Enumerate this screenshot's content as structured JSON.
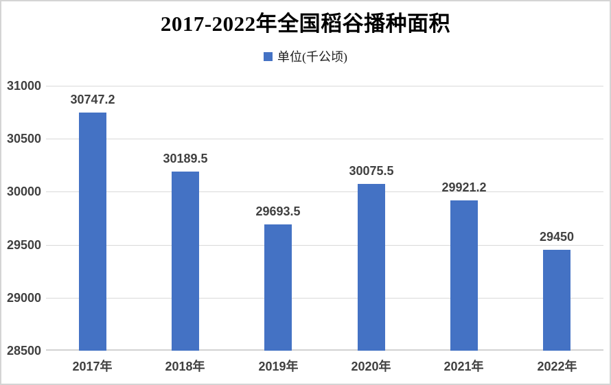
{
  "chart_data": {
    "type": "bar",
    "title": "2017-2022年全国稻谷播种面积",
    "legend": "单位(千公顷)",
    "legend_position": "top",
    "categories": [
      "2017年",
      "2018年",
      "2019年",
      "2020年",
      "2021年",
      "2022年"
    ],
    "values": [
      30747.2,
      30189.5,
      29693.5,
      30075.5,
      29921.2,
      29450
    ],
    "value_labels": [
      "30747.2",
      "30189.5",
      "29693.5",
      "30075.5",
      "29921.2",
      "29450"
    ],
    "xlabel": "",
    "ylabel": "",
    "ylim": [
      28500,
      31000
    ],
    "ytick_step": 500,
    "ytick_labels": [
      "31000",
      "30500",
      "30000",
      "29500",
      "29000",
      "28500"
    ],
    "grid": "horizontal",
    "bar_color": "#4472C4",
    "grid_color": "#d9d9d9",
    "label_color": "#404040",
    "title_color": "#000000"
  }
}
